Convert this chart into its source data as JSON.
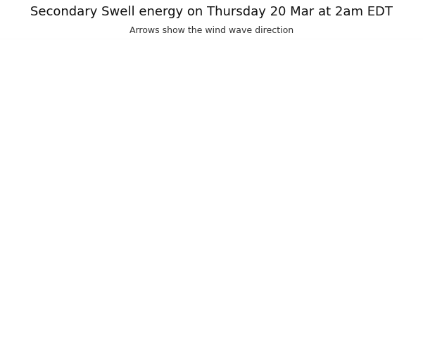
{
  "title": "Secondary Swell energy on Thursday 20 Mar at 2am EDT",
  "subtitle": "Arrows show the wind wave direction",
  "title_fontsize": 13,
  "subtitle_fontsize": 9,
  "title_color": "#111111",
  "subtitle_color": "#333333",
  "bg_color": "#ffffff",
  "ocean_color": "#000000",
  "land_color_base": 0.6,
  "land_color_range": 0.35,
  "border_color": "#444444",
  "border_lw": 0.6,
  "prov_border_lw": 0.5,
  "swell_arrow_color": "#00ddbb",
  "swell_arrow_lw": 0.9,
  "atlantic_swell_color": "#00ccaa",
  "map_extent": [
    -145,
    -52,
    38,
    85
  ],
  "fig_width": 6.01,
  "fig_height": 4.87,
  "dpi": 100
}
